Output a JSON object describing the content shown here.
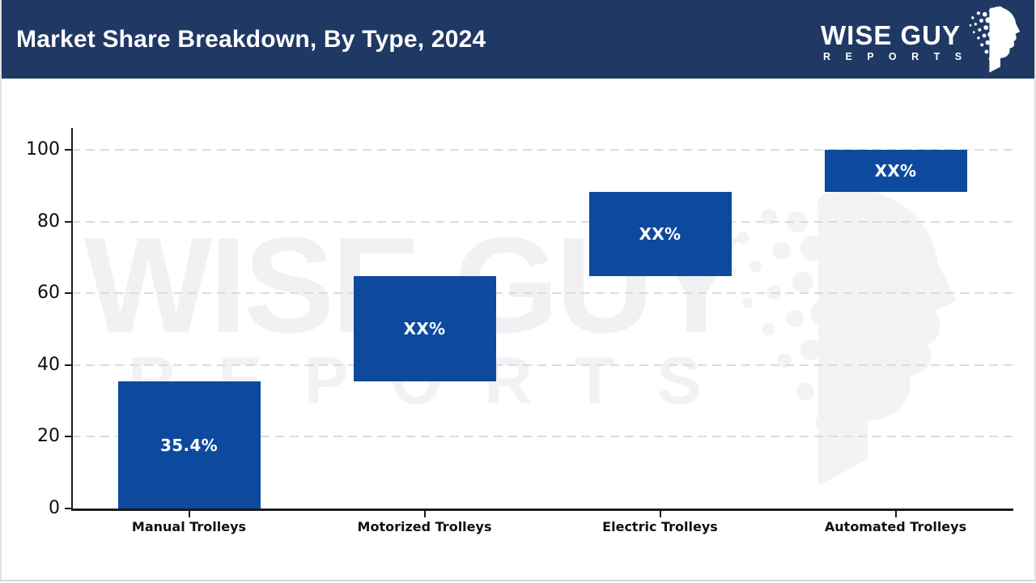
{
  "header": {
    "title": "Market Share Breakdown, By Type, 2024",
    "logo_line1": "WISE GUY",
    "logo_line2": "R E P O R T S"
  },
  "watermark": {
    "line1": "WISE GUY",
    "line2": "REPORTS"
  },
  "chart_data": {
    "type": "bar",
    "subtype": "floating-waterfall-segments",
    "title": "Market Share Breakdown, By Type, 2024",
    "categories": [
      "Manual Trolleys",
      "Motorized Trolleys",
      "Electric Trolleys",
      "Automated Trolleys"
    ],
    "segments": [
      {
        "category": "Manual Trolleys",
        "start": 0,
        "end": 35.4,
        "label": "35.4%"
      },
      {
        "category": "Motorized Trolleys",
        "start": 35.4,
        "end": 64.8,
        "label": "XX%"
      },
      {
        "category": "Electric Trolleys",
        "start": 64.8,
        "end": 88.2,
        "label": "XX%"
      },
      {
        "category": "Automated Trolleys",
        "start": 88.2,
        "end": 100,
        "label": "XX%"
      }
    ],
    "xlabel": "",
    "ylabel": "",
    "yticks": [
      0,
      20,
      40,
      60,
      80,
      100
    ],
    "ylim": [
      0,
      107
    ],
    "grid": {
      "horizontal": true,
      "style": "dashed",
      "color": "#dcdcdc"
    },
    "legend": "none",
    "colors": {
      "bar": "#0d4a9d",
      "bar_label": "#ffffff",
      "axis": "#1c1c1c",
      "header_bg": "#203864",
      "watermark": "#f1f1f3"
    }
  }
}
